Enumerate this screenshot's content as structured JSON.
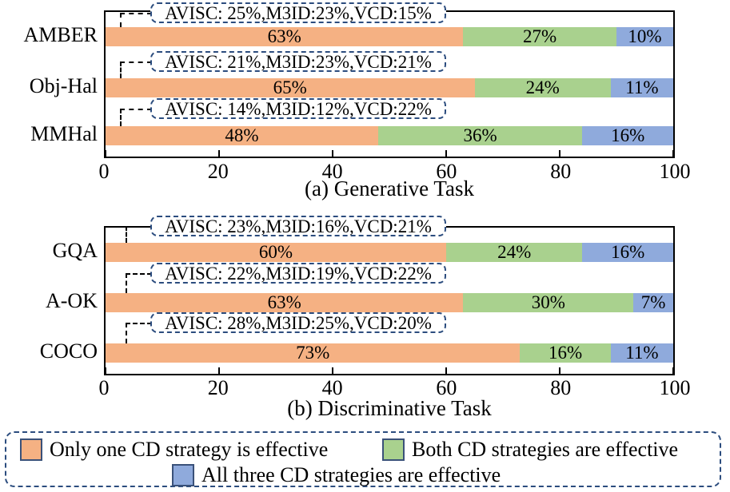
{
  "colors": {
    "only_one": "#F5B183",
    "both": "#A9D18E",
    "all_three": "#8FAADC",
    "box_border": "#2B4C7E",
    "swatch_border": "#3A5179",
    "axis": "#000000"
  },
  "chart_data": [
    {
      "type": "bar",
      "orientation": "horizontal",
      "stacked": true,
      "title": "(a) Generative Task",
      "categories": [
        "AMBER",
        "Obj-Hal",
        "MMHal"
      ],
      "series": [
        {
          "name": "Only one CD strategy is effective",
          "color": "#F5B183",
          "values": [
            63,
            65,
            48
          ]
        },
        {
          "name": "Both CD strategies are effective",
          "color": "#A9D18E",
          "values": [
            27,
            24,
            36
          ]
        },
        {
          "name": "All three CD strategies are effective",
          "color": "#8FAADC",
          "values": [
            10,
            11,
            16
          ]
        }
      ],
      "annotations": [
        "AVISC: 25%,M3ID:23%,VCD:15%",
        "AVISC: 21%,M3ID:23%,VCD:21%",
        "AVISC: 14%,M3ID:12%,VCD:22%"
      ],
      "xlim": [
        0,
        100
      ],
      "xticks": [
        "0",
        "20",
        "40",
        "60",
        "80",
        "100"
      ],
      "grid": false,
      "unit": "%"
    },
    {
      "type": "bar",
      "orientation": "horizontal",
      "stacked": true,
      "title": "(b) Discriminative Task",
      "categories": [
        "GQA",
        "A-OK",
        "COCO"
      ],
      "series": [
        {
          "name": "Only one CD strategy is effective",
          "color": "#F5B183",
          "values": [
            60,
            63,
            73
          ]
        },
        {
          "name": "Both CD strategies are effective",
          "color": "#A9D18E",
          "values": [
            24,
            30,
            16
          ]
        },
        {
          "name": "All three CD strategies are effective",
          "color": "#8FAADC",
          "values": [
            16,
            7,
            11
          ]
        }
      ],
      "annotations": [
        "AVISC: 23%,M3ID:16%,VCD:21%",
        "AVISC: 22%,M3ID:19%,VCD:22%",
        "AVISC: 28%,M3ID:25%,VCD:20%"
      ],
      "xlim": [
        0,
        100
      ],
      "xticks": [
        "0",
        "20",
        "40",
        "60",
        "80",
        "100"
      ],
      "grid": false,
      "unit": "%"
    }
  ],
  "legend": {
    "items": [
      {
        "label": "Only one CD strategy is effective",
        "color": "#F5B183"
      },
      {
        "label": "Both CD strategies are effective",
        "color": "#A9D18E"
      },
      {
        "label": "All three CD strategies are effective",
        "color": "#8FAADC"
      }
    ]
  }
}
